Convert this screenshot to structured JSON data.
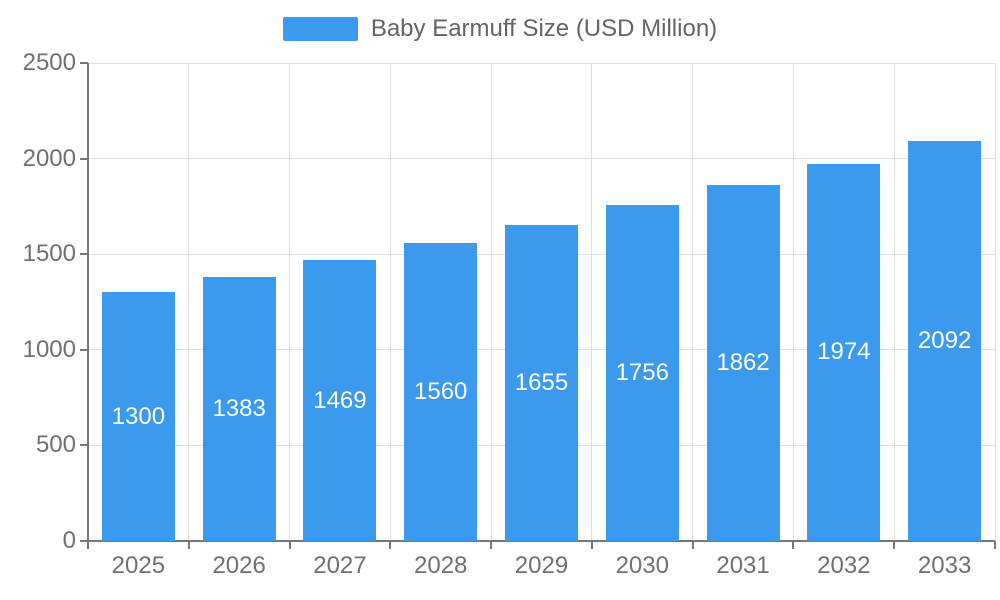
{
  "chart_data": {
    "type": "bar",
    "title": "Baby Earmuff Size (USD Million)",
    "categories": [
      "2025",
      "2026",
      "2027",
      "2028",
      "2029",
      "2030",
      "2031",
      "2032",
      "2033"
    ],
    "series": [
      {
        "name": "Baby Earmuff Size (USD Million)",
        "values": [
          1300,
          1383,
          1469,
          1560,
          1655,
          1756,
          1862,
          1974,
          2092
        ]
      }
    ],
    "xlabel": "",
    "ylabel": "",
    "ylim": [
      0,
      2500
    ],
    "y_ticks": [
      0,
      500,
      1000,
      1500,
      2000,
      2500
    ],
    "grid": true,
    "legend_position": "top-center",
    "value_label_position": "inside-center",
    "colors": {
      "bar": "#3B9AEE",
      "value_label": "#ffffff",
      "axis_line": "#74787d",
      "axis_label": "#6E7079",
      "gridline": "#e0e0e0",
      "legend_text": "#616468",
      "background": "#ffffff"
    }
  }
}
